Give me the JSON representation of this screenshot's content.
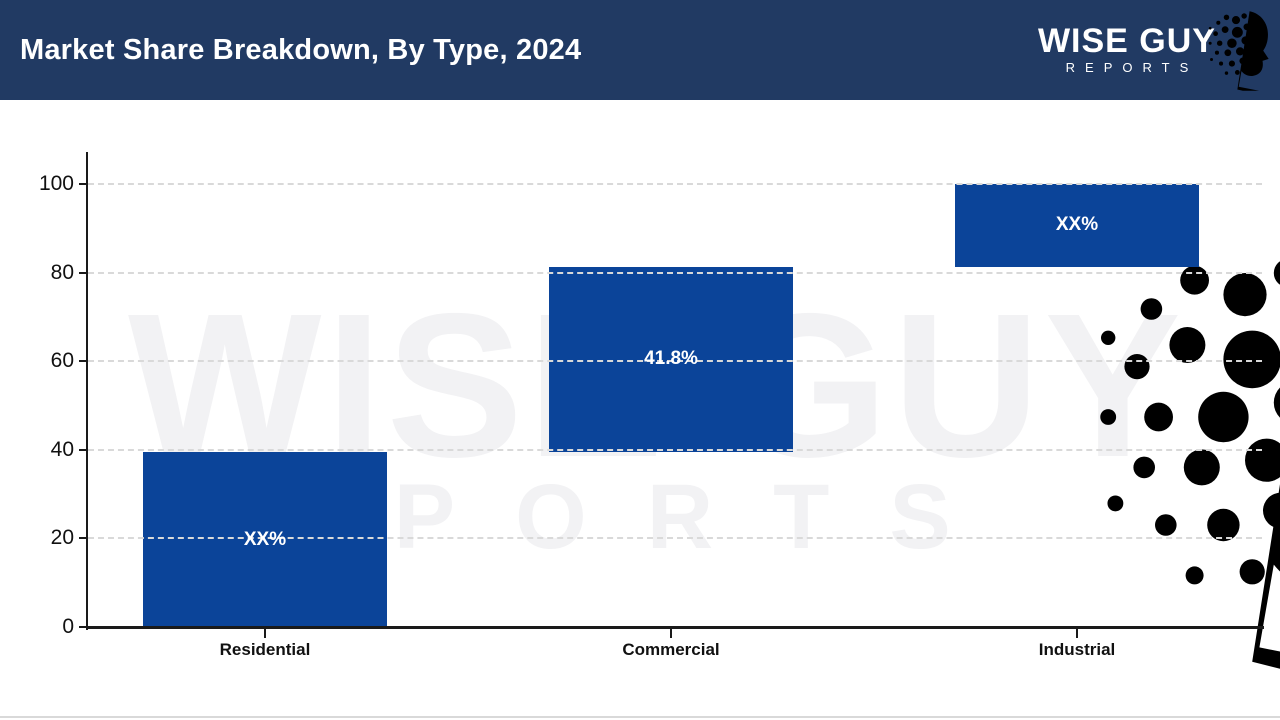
{
  "header": {
    "title": "Market Share Breakdown, By Type, 2024",
    "logo_line1": "WISE GUY",
    "logo_line2": "REPORTS"
  },
  "watermark": {
    "line1": "WISE GUY",
    "line2": "REPORTS"
  },
  "colors": {
    "header_bg": "#213a63",
    "bar": "#0b4499",
    "grid": "#d9d9d9",
    "axis": "#1a1a1a",
    "watermark": "#f2f2f4",
    "bar_label_text": "#ffffff",
    "title_text": "#ffffff"
  },
  "chart_data": {
    "type": "bar",
    "subtype": "waterfall-stacked-percent",
    "title": "Market Share Breakdown, By Type, 2024",
    "categories": [
      "Residential",
      "Commercial",
      "Industrial"
    ],
    "segments": [
      {
        "category": "Residential",
        "start": 0,
        "end": 39.5,
        "value_label": "XX%"
      },
      {
        "category": "Commercial",
        "start": 39.5,
        "end": 81.3,
        "value_label": "41.8%"
      },
      {
        "category": "Industrial",
        "start": 81.3,
        "end": 100,
        "value_label": "XX%"
      }
    ],
    "yticks": [
      0,
      20,
      40,
      60,
      80,
      100
    ],
    "ylim": [
      0,
      105
    ],
    "xlabel": "",
    "ylabel": "",
    "grid": "horizontal-dashed-over-bars",
    "legend": "none"
  }
}
